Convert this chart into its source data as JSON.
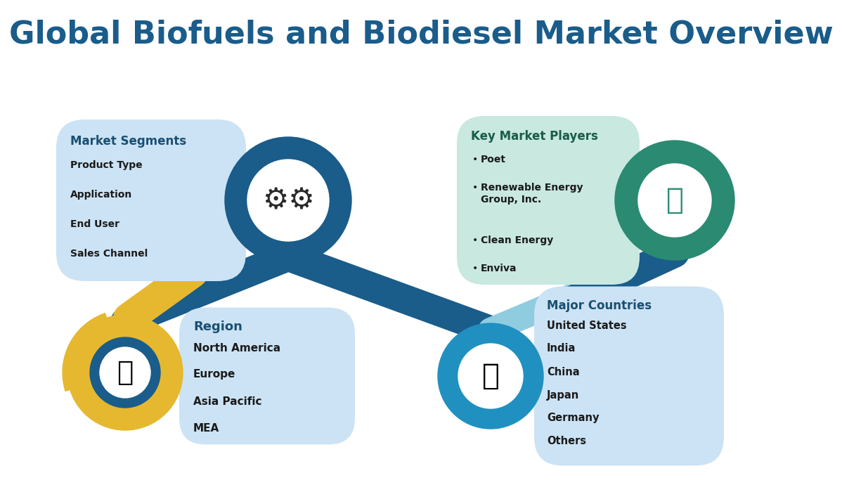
{
  "title": "Global Biofuels and Biodiesel Market Overview",
  "title_color": "#1a5c8a",
  "title_fontsize": 32,
  "background_color": "#ffffff",
  "segments_title": "Market Segments",
  "segments_items": [
    "Product Type",
    "Application",
    "End User",
    "Sales Channel"
  ],
  "segments_box_color": "#cce3f5",
  "segments_title_color": "#1a4f72",
  "segments_circle_color": "#1a5c8a",
  "players_title": "Key Market Players",
  "players_items": [
    "Poet",
    "Renewable Energy\nGroup, Inc.",
    "Clean Energy",
    "Enviva"
  ],
  "players_box_color": "#c8e8e0",
  "players_title_color": "#1a5c4a",
  "players_circle_color": "#2a8a72",
  "region_title": "Region",
  "region_items": [
    "North America",
    "Europe",
    "Asia Pacific",
    "MEA"
  ],
  "region_box_color": "#cce3f5",
  "region_title_color": "#1a4f72",
  "region_circle_color": "#e5b830",
  "region_circle_inner": "#1a5c8a",
  "countries_title": "Major Countries",
  "countries_items": [
    "United States",
    "India",
    "China",
    "Japan",
    "Germany",
    "Others"
  ],
  "countries_box_color": "#cce3f5",
  "countries_title_color": "#1a4f72",
  "countries_circle_color": "#2090c0",
  "connector_dark": "#1a5c8a",
  "connector_yellow": "#e5b830",
  "connector_light_blue": "#90cce0"
}
